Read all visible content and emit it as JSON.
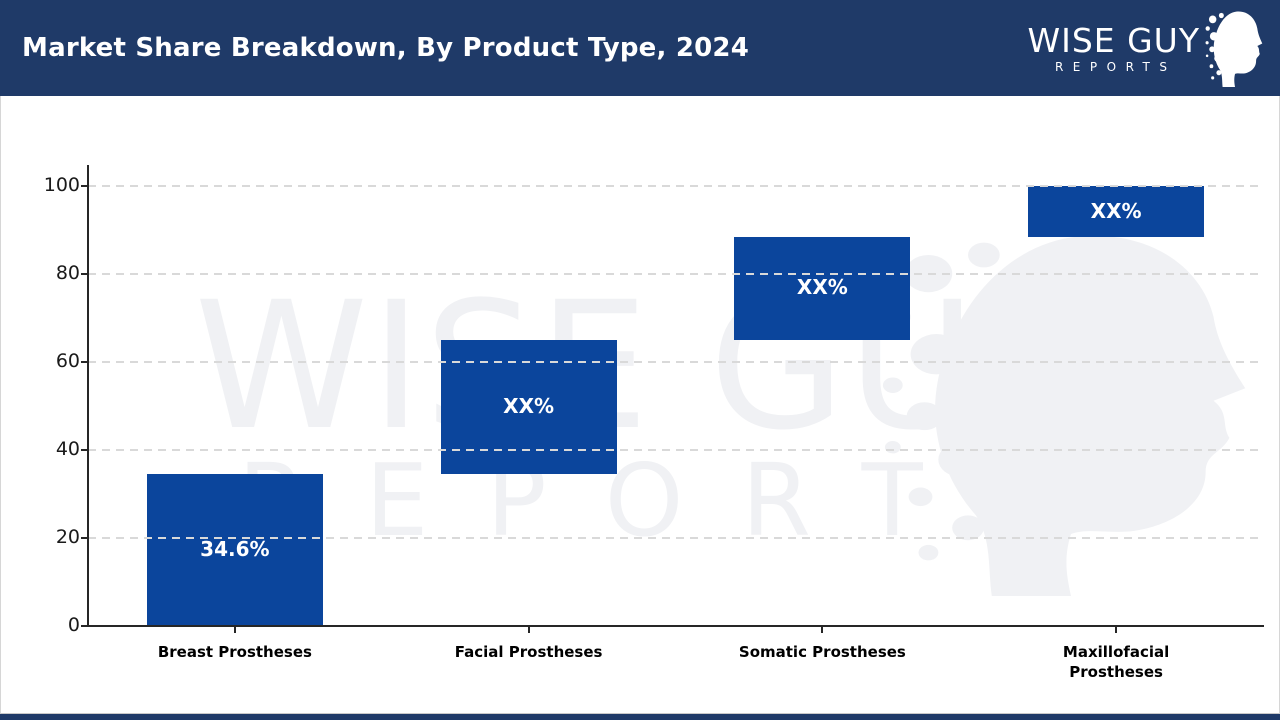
{
  "header": {
    "title": "Market Share Breakdown, By Product Type, 2024",
    "logo": {
      "name_top": "WISE GUY",
      "name_bottom": "REPORTS"
    }
  },
  "watermark": {
    "text_top": "WISE GUY",
    "text_bottom": "REPORTS"
  },
  "colors": {
    "header_bg": "#1f3a68",
    "bar": "#0b459c",
    "bar_label": "#ffffff",
    "grid": "#d9d9d9",
    "axis": "#262626",
    "watermark": "#f0f1f4"
  },
  "chart_data": {
    "type": "bar",
    "subtype": "waterfall",
    "title": "Market Share Breakdown, By Product Type, 2024",
    "categories": [
      "Breast Prostheses",
      "Facial Prostheses",
      "Somatic Prostheses",
      "Maxillofacial Prostheses"
    ],
    "series": [
      {
        "name": "Market share (%)",
        "segments": [
          {
            "category": "Breast Prostheses",
            "start": 0,
            "end": 34.6,
            "label": "34.6%"
          },
          {
            "category": "Facial Prostheses",
            "start": 34.6,
            "end": 65.1,
            "label": "XX%"
          },
          {
            "category": "Somatic Prostheses",
            "start": 65.1,
            "end": 88.4,
            "label": "XX%"
          },
          {
            "category": "Maxillofacial Prostheses",
            "start": 88.4,
            "end": 100,
            "label": "XX%"
          }
        ]
      }
    ],
    "xlabel": "",
    "ylabel": "",
    "ylim": [
      0,
      100
    ],
    "yticks": [
      0,
      20,
      40,
      60,
      80,
      100
    ],
    "grid": "horizontal-dashed-over-bars",
    "legend": "none"
  }
}
